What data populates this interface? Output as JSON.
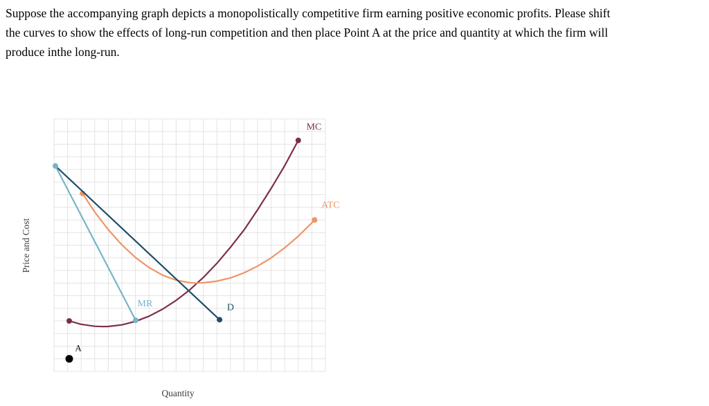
{
  "question": {
    "lines": [
      "Suppose the accompanying graph depicts a monopolistically competitive firm earning positive economic profits. Please shift",
      "the curves to show the effects of long-run competition and then place Point A at the price and quantity at which the firm will",
      "produce inthe long-run."
    ]
  },
  "chart_data": {
    "type": "line",
    "title": "",
    "xlabel": "Quantity",
    "ylabel": "Price and Cost",
    "xlim": [
      0,
      20
    ],
    "ylim": [
      0,
      20
    ],
    "grid": true,
    "grid_color": "#e4e4e4",
    "legend_position": "inline-labels",
    "series": [
      {
        "name": "MC",
        "color": "#7b2d4e",
        "curve_type": "u-shaped-marginal-cost",
        "points": [
          [
            1.12,
            4.0
          ],
          [
            2,
            3.73
          ],
          [
            3,
            3.58
          ],
          [
            3.6,
            3.55
          ],
          [
            4,
            3.56
          ],
          [
            5,
            3.69
          ],
          [
            6,
            3.96
          ],
          [
            7,
            4.37
          ],
          [
            8,
            4.93
          ],
          [
            9,
            5.63
          ],
          [
            10,
            6.46
          ],
          [
            11,
            7.44
          ],
          [
            12,
            8.56
          ],
          [
            13,
            9.83
          ],
          [
            14,
            11.2
          ],
          [
            15,
            12.8
          ],
          [
            16,
            14.5
          ],
          [
            17,
            16.3
          ],
          [
            18,
            18.3
          ]
        ],
        "dots": [
          [
            1.12,
            4.0
          ],
          [
            18,
            18.3
          ]
        ],
        "label_pos": [
          18.6,
          19.15
        ]
      },
      {
        "name": "ATC",
        "color": "#ef9465",
        "curve_type": "u-shaped-average-total-cost",
        "points": [
          [
            2.1,
            14.1
          ],
          [
            3,
            12.63
          ],
          [
            4,
            11.23
          ],
          [
            5,
            10.03
          ],
          [
            6,
            9.03
          ],
          [
            7,
            8.23
          ],
          [
            8,
            7.63
          ],
          [
            9,
            7.23
          ],
          [
            10,
            7.03
          ],
          [
            10.5,
            7.0
          ],
          [
            11,
            7.02
          ],
          [
            12,
            7.15
          ],
          [
            13,
            7.41
          ],
          [
            14,
            7.81
          ],
          [
            15,
            8.34
          ],
          [
            16,
            9.0
          ],
          [
            17,
            9.79
          ],
          [
            18,
            10.71
          ],
          [
            19,
            11.77
          ],
          [
            19.2,
            12.0
          ]
        ],
        "dots": [
          [
            2.1,
            14.1
          ],
          [
            19.2,
            12.0
          ]
        ],
        "label_pos": [
          19.7,
          12.95
        ]
      },
      {
        "name": "D",
        "color": "#1d4d68",
        "curve_type": "linear-demand",
        "points": [
          [
            0.1,
            16.28
          ],
          [
            12.2,
            4.1
          ]
        ],
        "dots": [
          [
            12.2,
            4.1
          ]
        ],
        "label_pos": [
          12.75,
          4.85
        ]
      },
      {
        "name": "MR",
        "color": "#76b4c8",
        "curve_type": "linear-marginal-revenue",
        "points": [
          [
            0.1,
            16.28
          ],
          [
            6.02,
            4.05
          ]
        ],
        "dots": [
          [
            0.1,
            16.28
          ],
          [
            6.02,
            4.05
          ]
        ],
        "label_pos": [
          6.15,
          5.15
        ]
      }
    ],
    "point_a": {
      "label": "A",
      "x": 1.12,
      "y": 1.0,
      "color": "#000000",
      "label_pos": [
        1.55,
        1.62
      ]
    }
  }
}
